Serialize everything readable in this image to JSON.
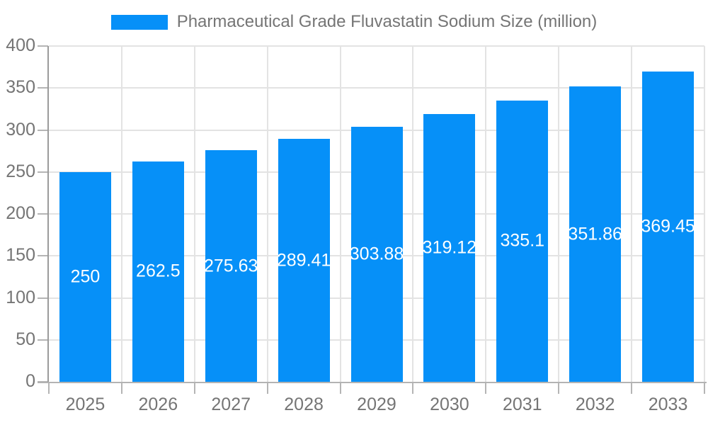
{
  "chart_data": {
    "type": "bar",
    "title": "Pharmaceutical Grade Fluvastatin Sodium Size (million)",
    "series_name": "Pharmaceutical Grade Fluvastatin Sodium Size (million)",
    "categories": [
      "2025",
      "2026",
      "2027",
      "2028",
      "2029",
      "2030",
      "2031",
      "2032",
      "2033"
    ],
    "values": [
      250,
      262.5,
      275.63,
      289.41,
      303.88,
      319.12,
      335.1,
      351.86,
      369.45
    ],
    "value_labels": [
      "250",
      "262.5",
      "275.63",
      "289.41",
      "303.88",
      "319.12",
      "335.1",
      "351.86",
      "369.45"
    ],
    "xlabel": "",
    "ylabel": "",
    "ylim": [
      0,
      400
    ],
    "y_ticks": [
      0,
      50,
      100,
      150,
      200,
      250,
      300,
      350,
      400
    ],
    "y_tick_labels": [
      "0",
      "50",
      "100",
      "150",
      "200",
      "250",
      "300",
      "350",
      "400"
    ],
    "grid": true,
    "legend_position": "top-center",
    "colors": {
      "bar": "#0690f8",
      "value_label": "#ffffff",
      "text": "#757575",
      "grid": "#e3e3e3",
      "y_axis_line": "#9b9b9b",
      "x_axis_line": "#b3b3b3",
      "tick": "#b5b5b5",
      "background": "#ffffff"
    }
  }
}
